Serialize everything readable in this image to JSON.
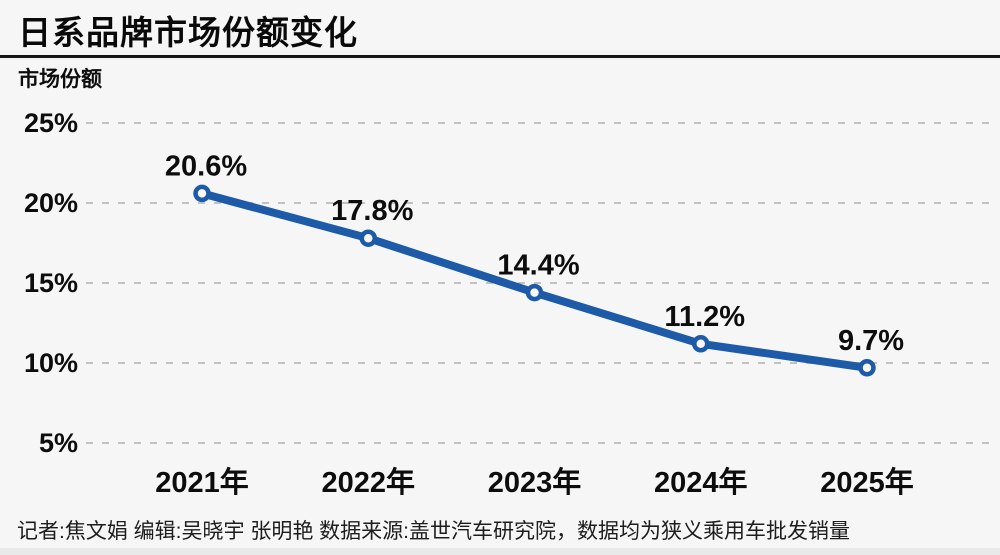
{
  "header": {
    "title": "日系品牌市场份额变化"
  },
  "chart_data": {
    "type": "line",
    "title": "日系品牌市场份额变化",
    "ylabel": "市场份额",
    "xlabel": "",
    "categories": [
      "2021年",
      "2022年",
      "2023年",
      "2024年",
      "2025年"
    ],
    "values": [
      20.6,
      17.8,
      14.4,
      11.2,
      9.7
    ],
    "value_labels": [
      "20.6%",
      "17.8%",
      "14.4%",
      "11.2%",
      "9.7%"
    ],
    "yticks": [
      25,
      20,
      15,
      10,
      5
    ],
    "ytick_labels": [
      "25%",
      "20%",
      "15%",
      "10%",
      "5%"
    ],
    "ylim": [
      5,
      25
    ],
    "grid": "horizontal-dashed",
    "legend": "none",
    "marker_style": "open-circle"
  },
  "footer": {
    "credits": "记者:焦文娟  编辑:吴晓宇 张明艳  数据来源:盖世汽车研究院，数据均为狭义乘用车批发销量"
  },
  "colors": {
    "line": "#1d5aa7",
    "marker_fill": "#f8f8f9",
    "background": "#f6f6f7",
    "grid": "#c2c2c2",
    "text": "#0d0d0d",
    "divider": "#161616"
  }
}
